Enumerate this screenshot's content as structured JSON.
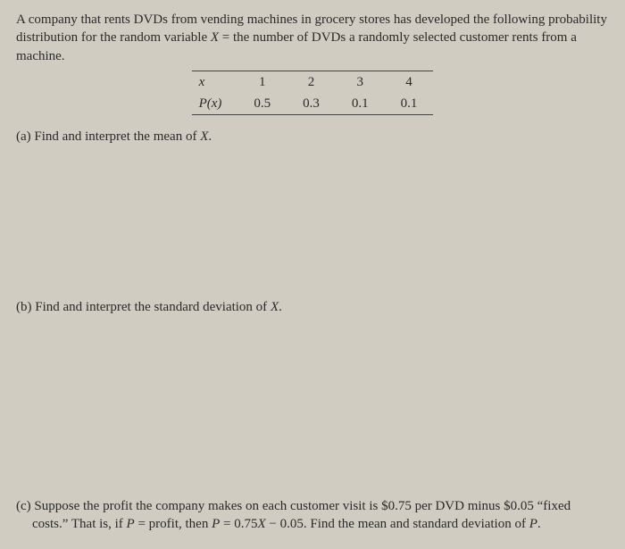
{
  "intro": {
    "line1": "A company that rents DVDs from vending machines in grocery stores has developed the following",
    "line2_pre": "probability distribution for the random variable ",
    "line2_var": "X",
    "line2_post": " = the number of DVDs a randomly selected customer",
    "line3": "rents from a machine."
  },
  "table": {
    "row1_label": "x",
    "row2_label": "P(x)",
    "cols": [
      "1",
      "2",
      "3",
      "4"
    ],
    "probs": [
      "0.5",
      "0.3",
      "0.1",
      "0.1"
    ]
  },
  "qa": {
    "label": "(a) ",
    "text_pre": "Find and interpret the mean of ",
    "var": "X",
    "text_post": "."
  },
  "qb": {
    "label": "(b) ",
    "text_pre": "Find and interpret the standard deviation of ",
    "var": "X",
    "text_post": "."
  },
  "qc": {
    "label": "(c) ",
    "line1": "Suppose the profit the company makes on each customer visit is $0.75 per DVD minus $0.05 “fixed",
    "line2_pre": "costs.” That is, if ",
    "p1": "P",
    "mid1": " = profit, then ",
    "p2": "P",
    "eq": " = 0.75",
    "xvar": "X",
    "mid2": " − 0.05. Find the mean and standard deviation of ",
    "p3": "P",
    "end": "."
  }
}
